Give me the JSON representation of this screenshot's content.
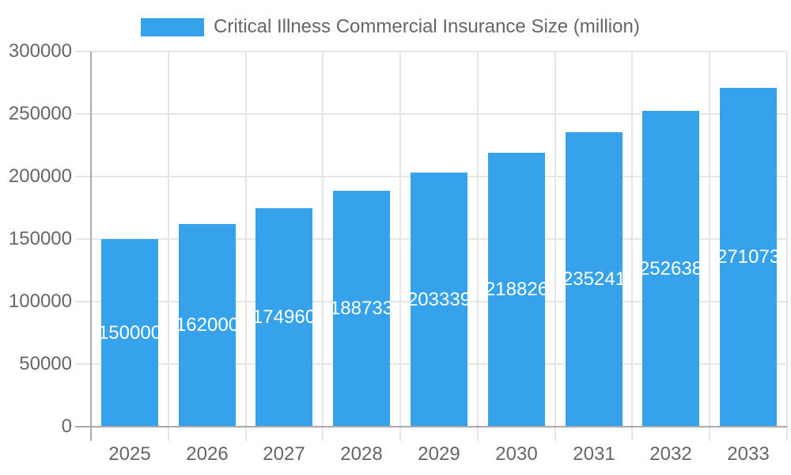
{
  "legend": {
    "label": "Critical Illness Commercial Insurance Size (million)"
  },
  "chart_data": {
    "type": "bar",
    "title": "Critical Illness Commercial Insurance Size (million)",
    "categories": [
      "2025",
      "2026",
      "2027",
      "2028",
      "2029",
      "2030",
      "2031",
      "2032",
      "2033"
    ],
    "values": [
      150000,
      162000,
      174960,
      188733,
      203339,
      218826,
      235241,
      252638,
      271073
    ],
    "bar_labels": [
      "150000",
      "162000",
      "174960",
      "188733",
      "203339",
      "218826",
      "235241",
      "252638",
      "271073"
    ],
    "xlabel": "",
    "ylabel": "",
    "ylim": [
      0,
      300000
    ],
    "ytick_interval": 50000,
    "yticks": [
      "0",
      "50000",
      "100000",
      "150000",
      "200000",
      "250000",
      "300000"
    ],
    "grid": true,
    "legend_position": "top",
    "colors": {
      "bar": "#36A2EB",
      "bar_label": "#FFFFFF",
      "axis_text": "#666666",
      "gridline": "#E6E6E6",
      "axis_line": "#ABABAB",
      "background": "#FFFFFF"
    }
  }
}
